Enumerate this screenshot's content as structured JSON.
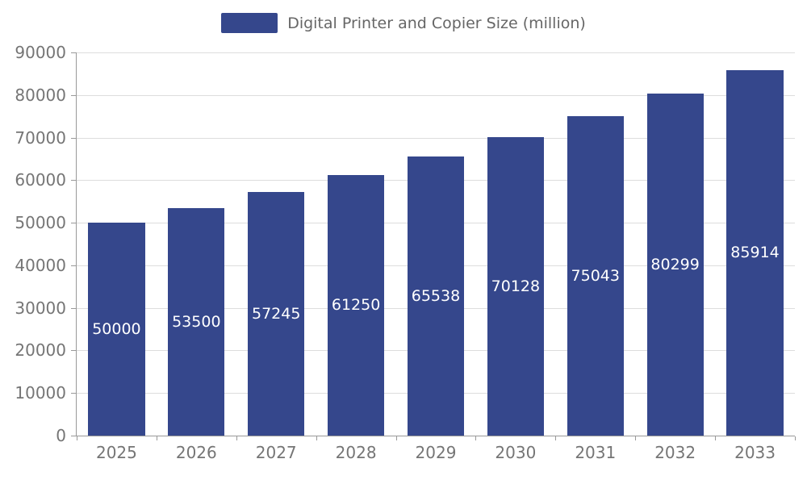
{
  "legend": {
    "label": "Digital Printer and Copier Size (million)"
  },
  "chart_data": {
    "type": "bar",
    "title": "Digital Printer and Copier Size (million)",
    "categories": [
      "2025",
      "2026",
      "2027",
      "2028",
      "2029",
      "2030",
      "2031",
      "2032",
      "2033"
    ],
    "values": [
      50000,
      53500,
      57245,
      61250,
      65538,
      70128,
      75043,
      80299,
      85914
    ],
    "value_labels": [
      "50000",
      "53500",
      "57245",
      "61250",
      "65538",
      "70128",
      "75043",
      "80299",
      "85914"
    ],
    "xlabel": "",
    "ylabel": "",
    "ylim": [
      0,
      90000
    ],
    "ytick_step": 10000,
    "ytick_labels": [
      "0",
      "10000",
      "20000",
      "30000",
      "40000",
      "50000",
      "60000",
      "70000",
      "80000",
      "90000"
    ],
    "grid": true,
    "legend_position": "top",
    "bar_color": "#35478c",
    "bar_label_color": "#ffffff",
    "axis_color": "#999999",
    "grid_color": "#dddddd",
    "tick_label_color": "#757575",
    "legend_text_color": "#666666"
  }
}
